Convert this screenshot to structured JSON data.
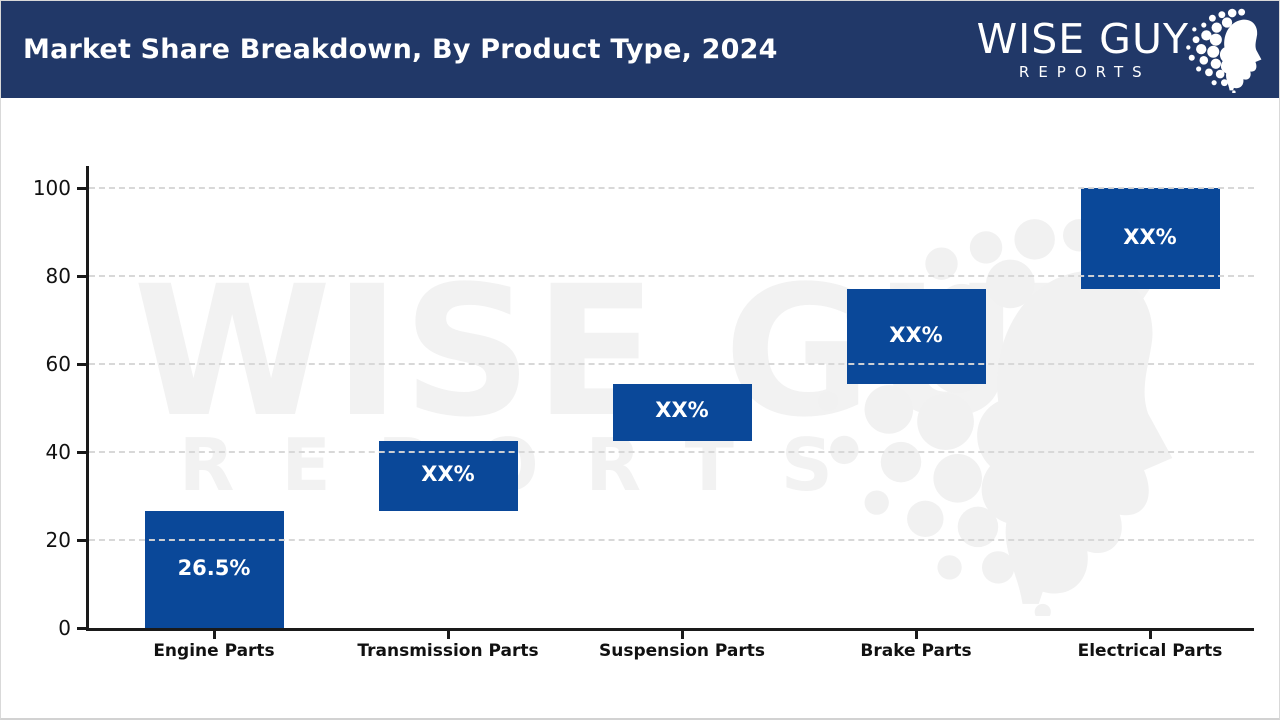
{
  "header": {
    "title": "Market Share Breakdown, By Product Type, 2024",
    "bg_color": "#213868",
    "logo": {
      "wordmark": "WISE GUY",
      "subtext": "REPORTS"
    }
  },
  "watermark": {
    "line1": "WISE GUY",
    "line2": "REPORTS"
  },
  "chart_data": {
    "type": "bar",
    "subtype": "waterfall",
    "title": "Market Share Breakdown, By Product Type, 2024",
    "categories": [
      "Engine Parts",
      "Transmission Parts",
      "Suspension Parts",
      "Brake Parts",
      "Electrical Parts"
    ],
    "values": [
      26.5,
      16,
      13,
      21.5,
      23
    ],
    "segments": [
      {
        "category": "Engine Parts",
        "start": 0,
        "end": 26.5,
        "label": "26.5%"
      },
      {
        "category": "Transmission Parts",
        "start": 26.5,
        "end": 42.5,
        "label": "XX%"
      },
      {
        "category": "Suspension Parts",
        "start": 42.5,
        "end": 55.5,
        "label": "XX%"
      },
      {
        "category": "Brake Parts",
        "start": 55.5,
        "end": 77,
        "label": "XX%"
      },
      {
        "category": "Electrical Parts",
        "start": 77,
        "end": 100,
        "label": "XX%"
      }
    ],
    "xlabel": "",
    "ylabel": "",
    "ylim": [
      0,
      100
    ],
    "yticks": [
      0,
      20,
      40,
      60,
      80,
      100
    ],
    "grid": "horizontal-dashed-over-bars",
    "legend": "none",
    "bar_color": "#0a4899",
    "bar_label_color": "#ffffff",
    "axis_color": "#1a1a1a",
    "grid_color": "#d6d6d6",
    "watermark_color": "#f2f2f2"
  }
}
